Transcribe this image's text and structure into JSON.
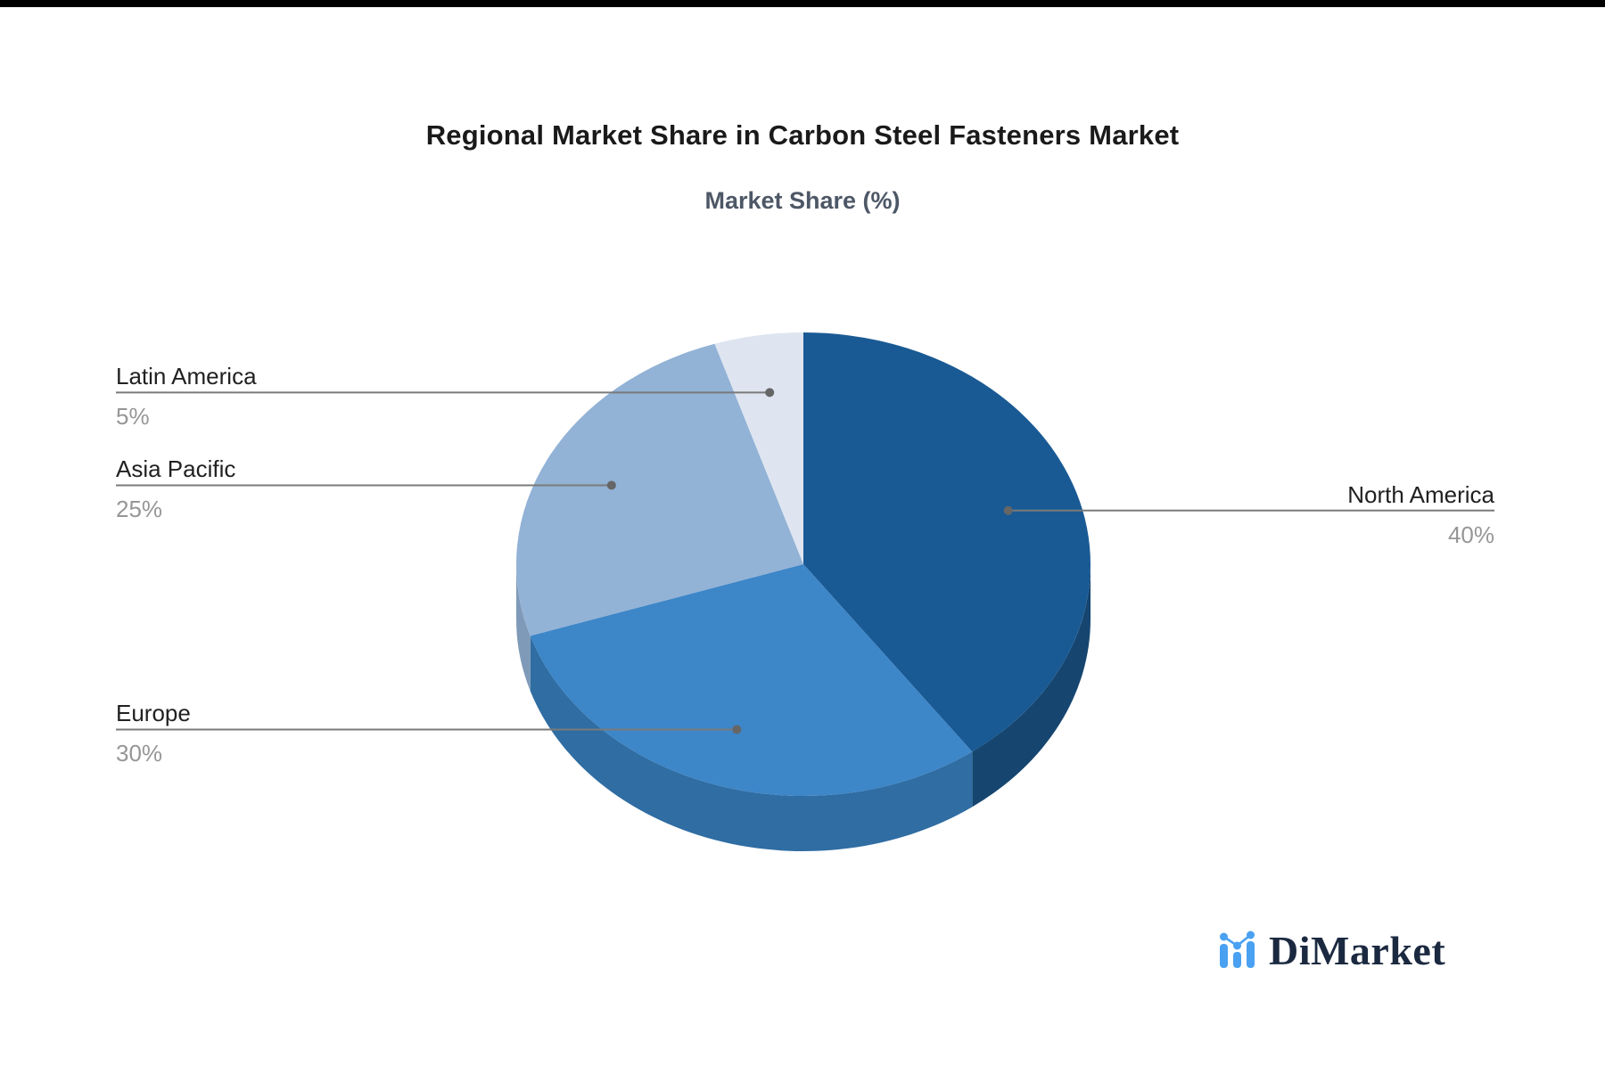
{
  "chart_data": {
    "type": "pie",
    "title": "Regional Market Share in Carbon Steel Fasteners Market",
    "subtitle": "Market Share (%)",
    "unit": "%",
    "start_angle_deg": 90,
    "direction": "clockwise",
    "labels_outside": true,
    "effect_3d": true,
    "slices": [
      {
        "label": "North America",
        "value": 40,
        "display": "40%",
        "color": "#1a5a94",
        "side_color": "#164670"
      },
      {
        "label": "Europe",
        "value": 30,
        "display": "30%",
        "color": "#3d86c8",
        "side_color": "#2f6da3"
      },
      {
        "label": "Asia Pacific",
        "value": 25,
        "display": "25%",
        "color": "#92b2d6",
        "side_color": "#7f9ab8"
      },
      {
        "label": "Latin America",
        "value": 5,
        "display": "5%",
        "color": "#dee5f0",
        "side_color": "#c9d3e2"
      }
    ]
  },
  "branding": {
    "logo_text": "DiMarket"
  },
  "colors": {
    "background": "#ffffff",
    "title_text": "#1a1a1a",
    "subtitle_text": "#4d5766",
    "label_text": "#212121",
    "percent_text": "#969696",
    "leader_line": "#7a7a7a",
    "leader_dot": "#666666",
    "logo_text": "#1b2940",
    "logo_icon": "#4aa1f2",
    "top_bar": "#000000"
  }
}
